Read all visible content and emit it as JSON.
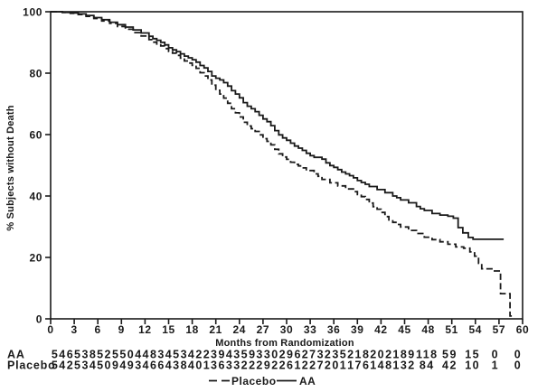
{
  "chart_data": {
    "type": "line",
    "subtype": "kaplan-meier-step",
    "title": "",
    "xlabel": "Months from Randomization",
    "ylabel": "% Subjects without Death",
    "xlim": [
      0,
      60
    ],
    "ylim": [
      0,
      100
    ],
    "x_ticks": [
      0,
      3,
      6,
      9,
      12,
      15,
      18,
      21,
      24,
      27,
      30,
      33,
      36,
      39,
      42,
      45,
      48,
      51,
      54,
      57,
      60
    ],
    "y_ticks": [
      0,
      20,
      40,
      60,
      80,
      100
    ],
    "grid": "off",
    "legend": {
      "position": "bottom-center",
      "items": [
        {
          "label": "Placebo",
          "line_style": "dashed"
        },
        {
          "label": "AA",
          "line_style": "solid"
        }
      ]
    },
    "series": [
      {
        "name": "AA",
        "line_style": "solid",
        "color": "#1a1a1a",
        "points": [
          [
            0,
            100
          ],
          [
            1.5,
            99.8
          ],
          [
            2.5,
            99.6
          ],
          [
            3.5,
            99.3
          ],
          [
            4.5,
            98.8
          ],
          [
            5.5,
            98.1
          ],
          [
            6.5,
            97.4
          ],
          [
            7.5,
            96.6
          ],
          [
            8.5,
            95.8
          ],
          [
            9.5,
            95.0
          ],
          [
            10.5,
            94.1
          ],
          [
            11.5,
            93.1
          ],
          [
            12.5,
            92.0
          ],
          [
            13.5,
            90.7
          ],
          [
            14.5,
            89.2
          ],
          [
            15.5,
            87.6
          ],
          [
            16.5,
            86.3
          ],
          [
            17.5,
            85.0
          ],
          [
            18.5,
            83.6
          ],
          [
            19.5,
            81.7
          ],
          [
            20.5,
            79.1
          ],
          [
            21.5,
            77.8
          ],
          [
            22.5,
            75.8
          ],
          [
            23.5,
            73.2
          ],
          [
            24.5,
            70.4
          ],
          [
            25.5,
            68.4
          ],
          [
            26.5,
            66.3
          ],
          [
            27.5,
            64.2
          ],
          [
            28.5,
            61.3
          ],
          [
            29.5,
            58.9
          ],
          [
            30.5,
            57.2
          ],
          [
            31.5,
            55.6
          ],
          [
            32.5,
            53.9
          ],
          [
            33.5,
            52.6
          ],
          [
            34.5,
            52.0
          ],
          [
            35.5,
            49.9
          ],
          [
            36.5,
            48.6
          ],
          [
            37.5,
            47.2
          ],
          [
            38.5,
            45.9
          ],
          [
            39.5,
            44.4
          ],
          [
            40.5,
            43.1
          ],
          [
            41.5,
            42.1
          ],
          [
            42.5,
            41.1
          ],
          [
            43.5,
            40.0
          ],
          [
            44.5,
            38.7
          ],
          [
            45.5,
            37.8
          ],
          [
            46.5,
            36.6
          ],
          [
            47.5,
            35.3
          ],
          [
            48.5,
            34.3
          ],
          [
            49.5,
            33.8
          ],
          [
            50.5,
            33.4
          ],
          [
            51.2,
            32.8
          ],
          [
            51.8,
            29.7
          ],
          [
            52.4,
            28.0
          ],
          [
            53.1,
            26.5
          ],
          [
            53.7,
            25.9
          ],
          [
            57.6,
            25.9
          ]
        ]
      },
      {
        "name": "Placebo",
        "line_style": "dashed",
        "color": "#1a1a1a",
        "points": [
          [
            0,
            100
          ],
          [
            1.5,
            99.8
          ],
          [
            2.5,
            99.5
          ],
          [
            3.5,
            99.1
          ],
          [
            4.5,
            98.5
          ],
          [
            5.5,
            97.8
          ],
          [
            6.5,
            97.0
          ],
          [
            7.5,
            96.2
          ],
          [
            8.5,
            95.2
          ],
          [
            9.5,
            94.3
          ],
          [
            10.5,
            93.2
          ],
          [
            11.5,
            92.1
          ],
          [
            12.5,
            90.9
          ],
          [
            13.5,
            89.5
          ],
          [
            14.5,
            88.0
          ],
          [
            15.5,
            86.5
          ],
          [
            16.5,
            84.9
          ],
          [
            17.5,
            83.3
          ],
          [
            18.5,
            81.6
          ],
          [
            19.5,
            79.1
          ],
          [
            20.5,
            76.1
          ],
          [
            21.5,
            73.2
          ],
          [
            22.5,
            70.2
          ],
          [
            23.5,
            67.1
          ],
          [
            24.5,
            64.0
          ],
          [
            25.5,
            61.9
          ],
          [
            26.5,
            59.9
          ],
          [
            27.5,
            57.8
          ],
          [
            28.5,
            55.2
          ],
          [
            29.5,
            52.7
          ],
          [
            30.5,
            51.0
          ],
          [
            31.5,
            49.8
          ],
          [
            32.5,
            48.3
          ],
          [
            33.5,
            47.2
          ],
          [
            34.5,
            45.4
          ],
          [
            35.5,
            44.3
          ],
          [
            36.5,
            43.3
          ],
          [
            37.5,
            42.3
          ],
          [
            38.5,
            41.4
          ],
          [
            39.5,
            39.8
          ],
          [
            40.5,
            37.7
          ],
          [
            41.5,
            35.7
          ],
          [
            42.5,
            33.3
          ],
          [
            43.5,
            31.4
          ],
          [
            44.5,
            29.9
          ],
          [
            45.5,
            28.8
          ],
          [
            46.5,
            27.8
          ],
          [
            47.5,
            26.6
          ],
          [
            48.5,
            25.8
          ],
          [
            49.5,
            25.1
          ],
          [
            50.5,
            24.3
          ],
          [
            51.5,
            23.4
          ],
          [
            52.5,
            23.0
          ],
          [
            53.3,
            21.8
          ],
          [
            53.9,
            20.4
          ],
          [
            54.4,
            18.1
          ],
          [
            54.8,
            16.3
          ],
          [
            56.3,
            15.6
          ],
          [
            57.2,
            8.2
          ],
          [
            58.4,
            0.9
          ],
          [
            58.7,
            0.9
          ]
        ]
      }
    ],
    "number_at_risk": {
      "time_points": [
        0,
        3,
        6,
        9,
        12,
        15,
        18,
        21,
        24,
        27,
        30,
        33,
        36,
        39,
        42,
        45,
        48,
        51,
        54,
        57,
        60
      ],
      "rows": [
        {
          "label": "AA",
          "values": [
            546,
            538,
            525,
            504,
            483,
            453,
            422,
            394,
            359,
            330,
            296,
            273,
            235,
            218,
            202,
            189,
            118,
            59,
            15,
            0,
            0
          ]
        },
        {
          "label": "Placebo",
          "values": [
            542,
            534,
            509,
            493,
            466,
            438,
            401,
            363,
            322,
            292,
            261,
            227,
            201,
            176,
            148,
            132,
            84,
            42,
            10,
            1,
            0
          ]
        }
      ]
    }
  },
  "colors": {
    "ink": "#1a1a1a",
    "background": "#ffffff"
  }
}
